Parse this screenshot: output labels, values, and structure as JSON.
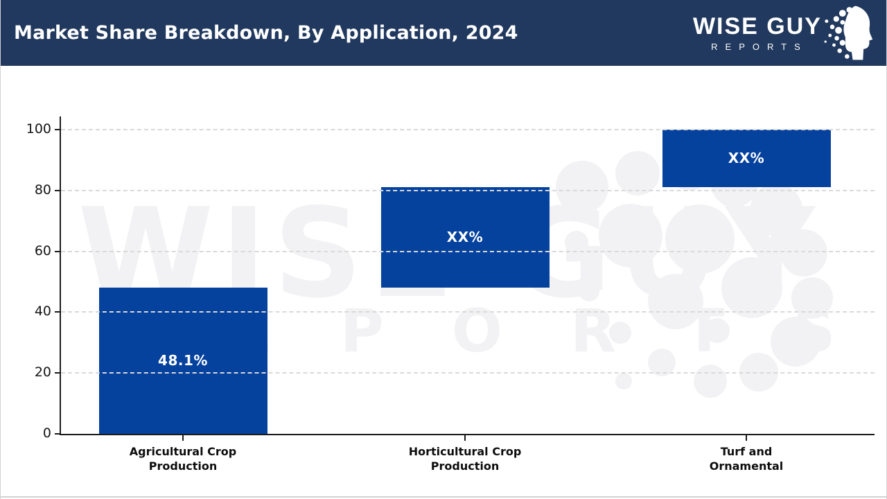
{
  "header": {
    "title": "Market Share Breakdown, By Application, 2024",
    "logo": {
      "line1": "WISE GUY",
      "line2": "REPORTS"
    }
  },
  "watermark": {
    "line1": "WISE GUY",
    "line2": "R E P O R T S"
  },
  "chart_data": {
    "type": "bar",
    "subtype": "waterfall",
    "title": "Market Share Breakdown, By Application, 2024",
    "categories": [
      "Agricultural Crop\nProduction",
      "Horticultural Crop\nProduction",
      "Turf and\nOrnamental"
    ],
    "segments": [
      {
        "category": "Agricultural Crop Production",
        "start": 0,
        "end": 48.1,
        "label": "48.1%"
      },
      {
        "category": "Horticultural Crop Production",
        "start": 48.1,
        "end": 81.1,
        "label": "XX%"
      },
      {
        "category": "Turf and Ornamental",
        "start": 81.1,
        "end": 100,
        "label": "XX%"
      }
    ],
    "ylim": [
      0,
      100
    ],
    "yticks": [
      "0",
      "20",
      "40",
      "60",
      "80",
      "100"
    ],
    "grid": "horizontal-dashed",
    "legend": "none",
    "bar_color": "#05429e",
    "bar_label_color": "#ffffff"
  },
  "colors": {
    "header_bg": "#21395e",
    "bar": "#05429e",
    "grid": "#d9d9d9",
    "axis": "#1a1a1a",
    "watermark": "#f2f2f4"
  }
}
